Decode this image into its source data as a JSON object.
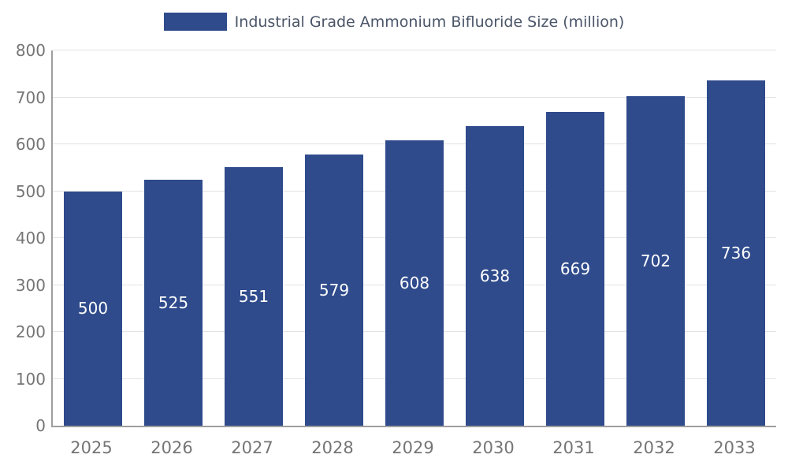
{
  "legend": {
    "label": "Industrial Grade Ammonium Bifluoride Size (million)",
    "swatch_color": "#2F4B8C"
  },
  "chart_data": {
    "type": "bar",
    "title": "Industrial Grade Ammonium Bifluoride Size (million)",
    "categories": [
      "2025",
      "2026",
      "2027",
      "2028",
      "2029",
      "2030",
      "2031",
      "2032",
      "2033"
    ],
    "values": [
      500,
      525,
      551,
      579,
      608,
      638,
      669,
      702,
      736
    ],
    "xlabel": "",
    "ylabel": "",
    "ylim": [
      0,
      800
    ],
    "ytick_interval": 100,
    "ytick_labels": [
      "0",
      "100",
      "200",
      "300",
      "400",
      "500",
      "600",
      "700",
      "800"
    ],
    "grid": true,
    "legend_position": "top",
    "bar_color": "#2F4B8C",
    "value_label_color": "#ffffff",
    "axis_color": "#9e9e9e",
    "gridline_color": "#e3e3e3",
    "tick_label_color": "#757575"
  }
}
